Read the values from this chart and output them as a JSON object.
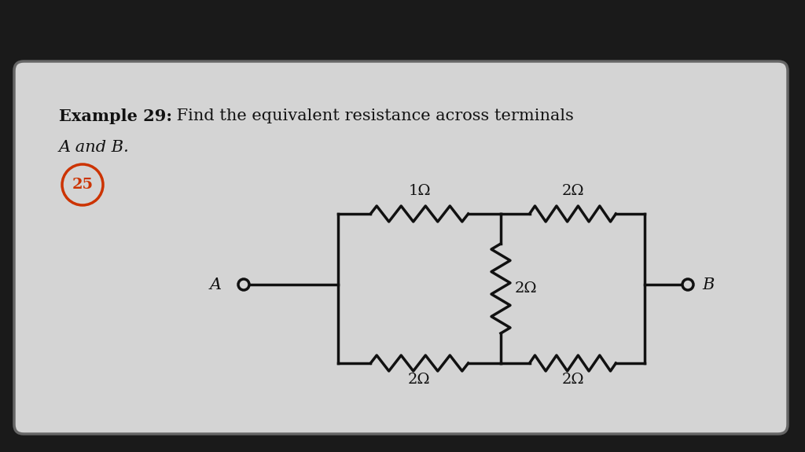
{
  "background_outer": "#1a1a1a",
  "background_inner": "#d4d4d4",
  "text_color": "#111111",
  "circle_color": "#cc3300",
  "resistor_labels": {
    "top_left": "1Ω",
    "top_right": "2Ω",
    "middle": "2Ω",
    "bottom_left": "2Ω",
    "bottom_right": "2Ω"
  },
  "terminal_A": "A",
  "terminal_B": "B",
  "circle_label": "25",
  "title_bold": "Example 29:",
  "title_normal": " Find the equivalent resistance across terminals",
  "title_line2": "A and B."
}
